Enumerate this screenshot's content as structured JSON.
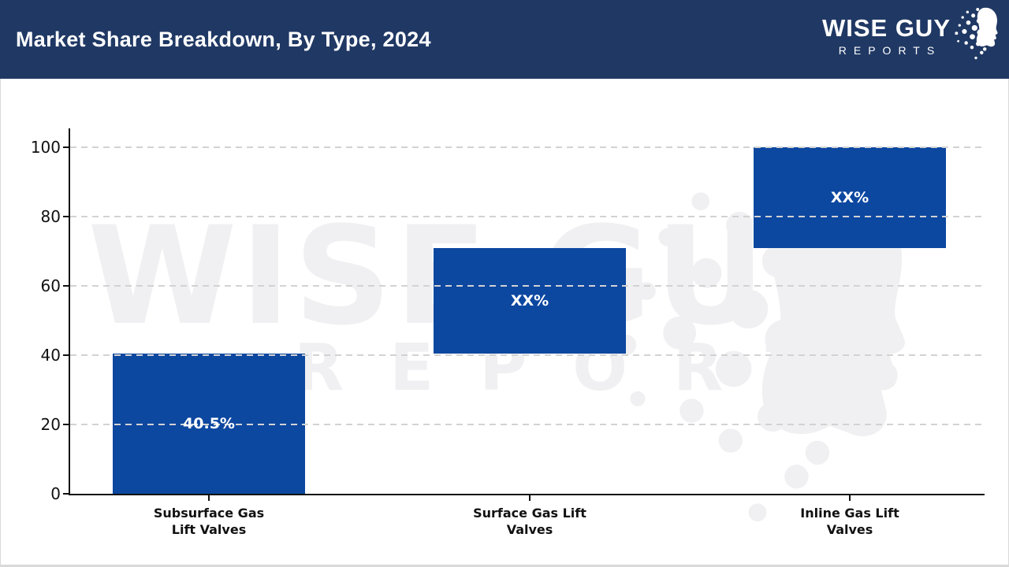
{
  "header": {
    "title": "Market Share Breakdown, By Type, 2024",
    "logo_line1": "WISE GUY",
    "logo_line2": "REPORTS"
  },
  "watermark": {
    "line1": "WISE GUY",
    "line2": "REPORTS"
  },
  "colors": {
    "header_bg": "#203864",
    "title_text": "#ffffff",
    "bar_fill": "#0c47a0",
    "bar_label": "#ffffff",
    "axis": "#111111",
    "grid": "#d2d2d2",
    "watermark": "#f0f0f2"
  },
  "chart_data": {
    "type": "bar",
    "subtype": "stacked-waterfall-segments",
    "title": "Market Share Breakdown, By Type, 2024",
    "categories": [
      [
        "Subsurface Gas",
        "Lift Valves"
      ],
      [
        "Surface Gas Lift",
        "Valves"
      ],
      [
        "Inline Gas Lift",
        "Valves"
      ]
    ],
    "segments": [
      {
        "category": "Subsurface Gas Lift Valves",
        "start": 0,
        "end": 40.5,
        "label": "40.5%"
      },
      {
        "category": "Surface Gas Lift Valves",
        "start": 40.5,
        "end": 71,
        "label": "XX%"
      },
      {
        "category": "Inline Gas Lift Valves",
        "start": 71,
        "end": 100,
        "label": "XX%"
      }
    ],
    "ylim": [
      0,
      100
    ],
    "yticks": [
      0,
      20,
      40,
      60,
      80,
      100
    ],
    "grid": "horizontal-dashed",
    "legend": "none",
    "xlabel": "",
    "ylabel": ""
  }
}
